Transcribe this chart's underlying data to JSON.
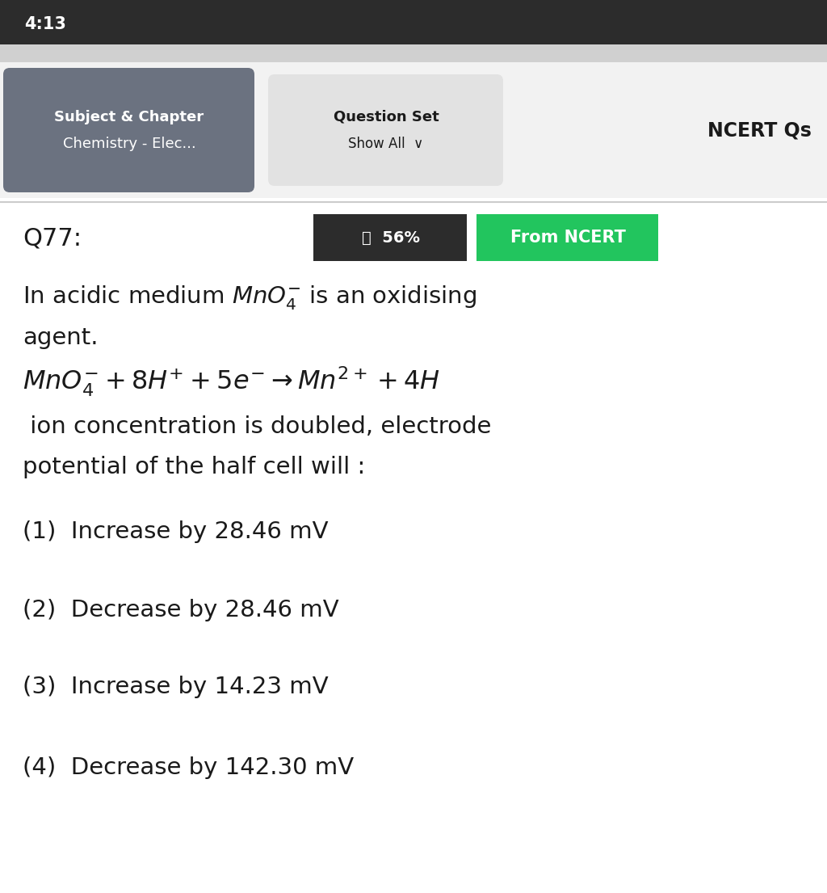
{
  "bg_color": "#ffffff",
  "status_bar_bg": "#2c2c2c",
  "status_bar_text": "4:13",
  "status_bar_color": "#ffffff",
  "subject_btn_bg": "#6b7280",
  "subject_btn_text_line1": "Subject & Chapter",
  "subject_btn_text_line2": "Chemistry - Elec...",
  "subject_btn_color": "#ffffff",
  "question_set_label": "Question Set",
  "show_all_text": "Show All  ∨",
  "ncert_qs_text": "NCERT Qs",
  "q_number": "Q77:",
  "like_pct": "56%",
  "like_bg": "#2c2c2c",
  "like_color": "#ffffff",
  "from_ncert_bg": "#22c55e",
  "from_ncert_text": "From NCERT",
  "from_ncert_color": "#ffffff",
  "options": [
    "(1)  Increase by 28.46 mV",
    "(2)  Decrease by 28.46 mV",
    "(3)  Increase by 14.23 mV",
    "(4)  Decrease by 142.30 mV"
  ],
  "option_color": "#1a1a1a",
  "text_color": "#1a1a1a",
  "divider_color": "#cccccc"
}
